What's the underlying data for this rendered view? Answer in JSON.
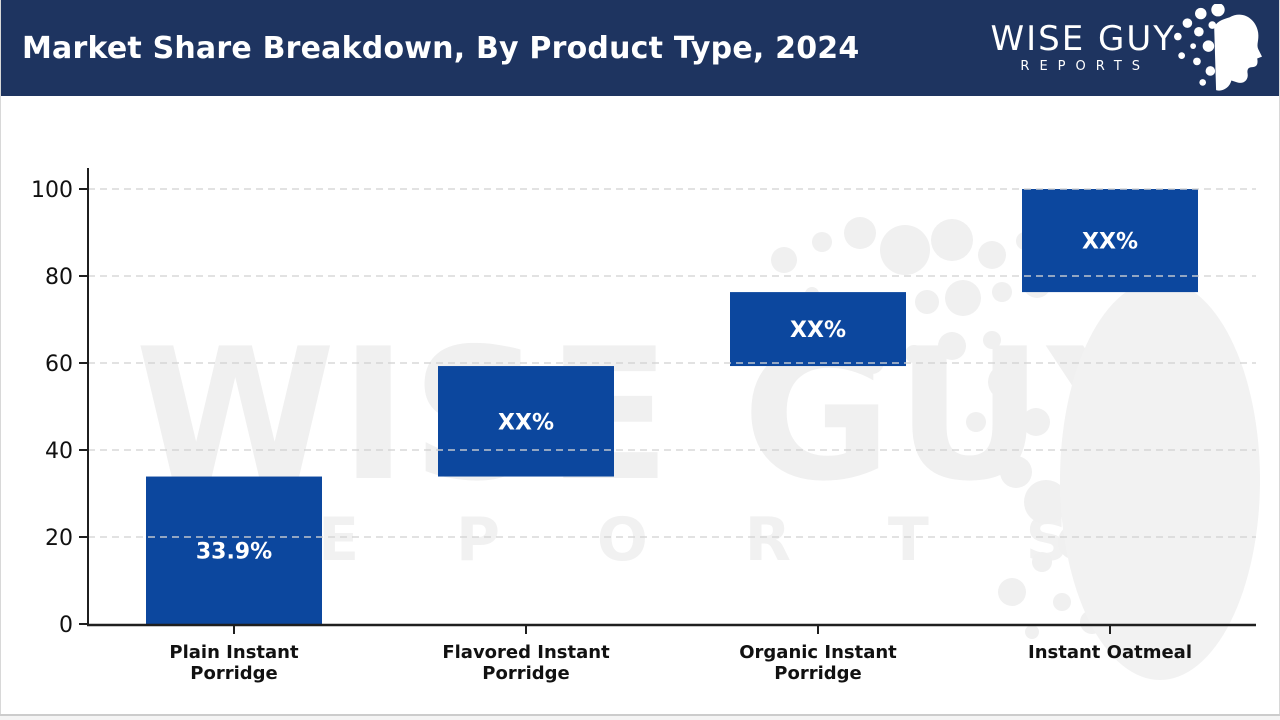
{
  "header": {
    "title": "Market Share Breakdown, By Product Type, 2024",
    "logo": {
      "name": "WISE GUY",
      "subtitle": "REPORTS"
    }
  },
  "watermark": {
    "line1": "WISE GUY",
    "line2": "R E P O R T S"
  },
  "chart_data": {
    "type": "bar",
    "subtype": "waterfall",
    "title": "Market Share Breakdown, By Product Type, 2024",
    "categories": [
      "Plain Instant Porridge",
      "Flavored Instant Porridge",
      "Organic Instant Porridge",
      "Instant Oatmeal"
    ],
    "category_lines": [
      [
        "Plain Instant",
        "Porridge"
      ],
      [
        "Flavored Instant",
        "Porridge"
      ],
      [
        "Organic Instant",
        "Porridge"
      ],
      [
        "Instant Oatmeal"
      ]
    ],
    "segments": [
      {
        "start": 0,
        "end": 33.9,
        "label": "33.9%"
      },
      {
        "start": 33.9,
        "end": 59.3,
        "label": "XX%"
      },
      {
        "start": 59.3,
        "end": 76.3,
        "label": "XX%"
      },
      {
        "start": 76.3,
        "end": 100,
        "label": "XX%"
      }
    ],
    "ylim": [
      0,
      100
    ],
    "yticks": [
      0,
      20,
      40,
      60,
      80,
      100
    ],
    "grid": "horizontal-dashed",
    "legend": null,
    "bar_color": "#0c479e",
    "label_color": "#ffffff",
    "grid_color": "#d4d4d4",
    "axis_color": "#1f1f1f"
  },
  "colors": {
    "header_bg": "#1e3460",
    "watermark": "#f0f0f0"
  }
}
